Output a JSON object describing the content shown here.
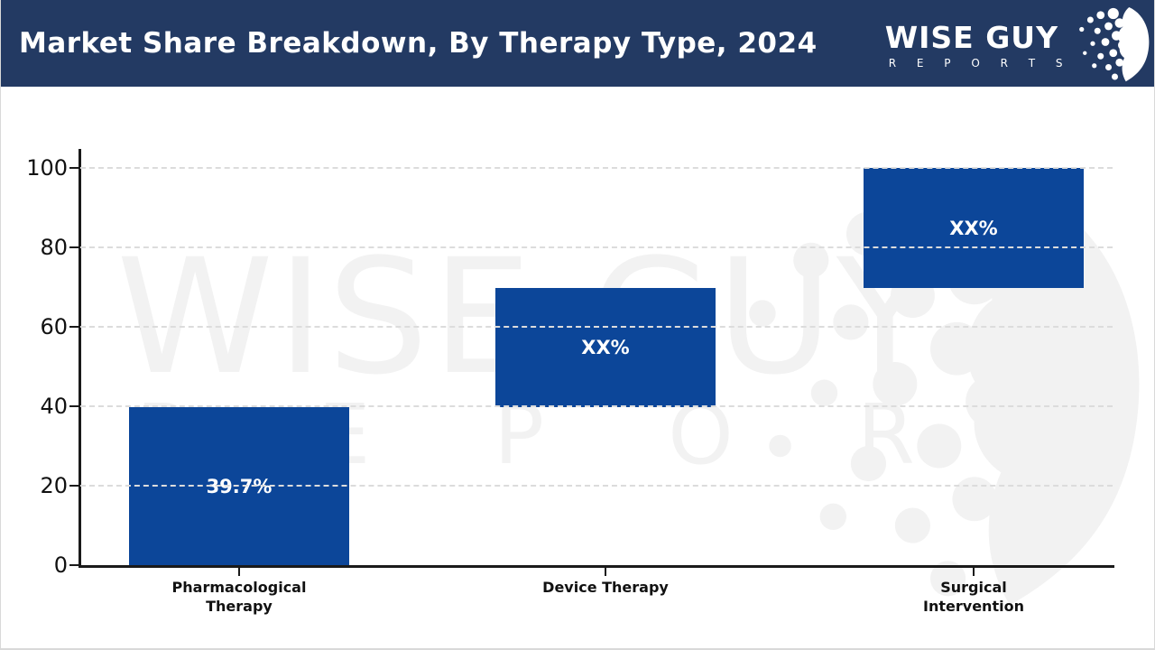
{
  "header": {
    "title": "Market Share Breakdown, By Therapy Type, 2024",
    "logo": {
      "line1": "WISE GUY",
      "line2": "R E P O R T S"
    }
  },
  "watermark": {
    "line1": "WISE GUY",
    "line2": "R E P O R T S"
  },
  "colors": {
    "header_bg": "#233a63",
    "bar": "#0c4699",
    "grid": "#dcdcdc",
    "axis": "#1a1a1a",
    "watermark": "#f2f2f2",
    "bar_label": "#ffffff",
    "title_text": "#ffffff"
  },
  "chart_data": {
    "type": "bar",
    "subtype": "stacked-range-waterfall",
    "title": "Market Share Breakdown, By Therapy Type, 2024",
    "categories": [
      "Pharmacological Therapy",
      "Device Therapy",
      "Surgical Intervention"
    ],
    "bars": [
      {
        "category_lines": [
          "Pharmacological",
          "Therapy"
        ],
        "start": 0,
        "end": 39.7,
        "label": "39.7%"
      },
      {
        "category_lines": [
          "Device Therapy"
        ],
        "start": 39.7,
        "end": 69.7,
        "label": "XX%"
      },
      {
        "category_lines": [
          "Surgical",
          "Intervention"
        ],
        "start": 69.7,
        "end": 100,
        "label": "XX%"
      }
    ],
    "segment_values": [
      39.7,
      30,
      30.3
    ],
    "value_labels": [
      "39.7%",
      "XX%",
      "XX%"
    ],
    "xlabel": "",
    "ylabel": "",
    "ylim": [
      0,
      100
    ],
    "yticks": [
      0,
      20,
      40,
      60,
      80,
      100
    ],
    "grid": true,
    "legend": false,
    "bar_color": "#0c4699"
  }
}
